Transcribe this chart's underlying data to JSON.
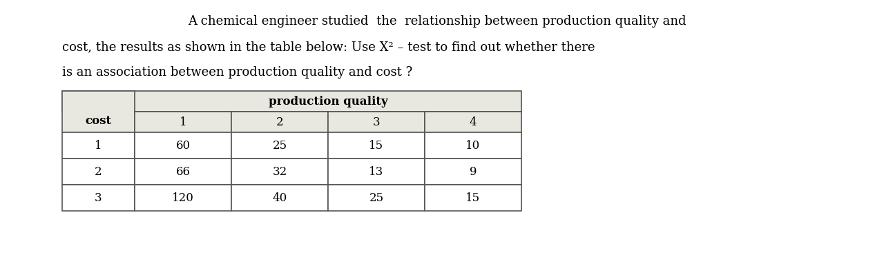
{
  "title_line1": "A chemical engineer studied  the  relationship between production quality and",
  "title_line2": "cost, the results as shown in the table below: Use X² – test to find out whether there",
  "title_line3": "is an association between production quality and cost ?",
  "header_merged": "production quality",
  "col_header": "cost",
  "sub_headers": [
    "1",
    "2",
    "3",
    "4"
  ],
  "row_labels": [
    "1",
    "2",
    "3"
  ],
  "table_data": [
    [
      "60",
      "25",
      "15",
      "10"
    ],
    [
      "66",
      "32",
      "13",
      "9"
    ],
    [
      "120",
      "40",
      "25",
      "15"
    ]
  ],
  "header_bg": "#e8e8e0",
  "cell_bg": "#ffffff",
  "text_color": "#000000",
  "border_color": "#555555",
  "font_size_text": 13,
  "font_size_table": 12,
  "bg_color": "#ffffff"
}
